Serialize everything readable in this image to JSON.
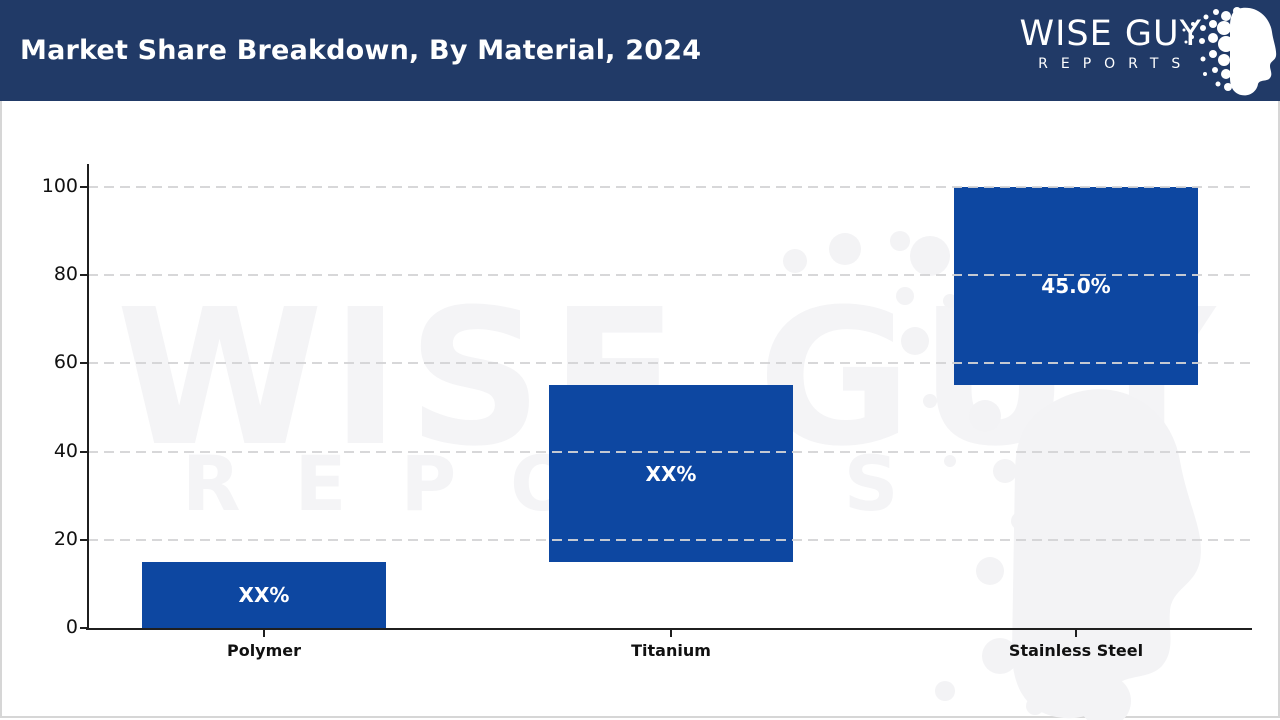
{
  "header": {
    "title": "Market Share Breakdown, By Material, 2024",
    "logo": {
      "line1": "WISE GUY",
      "line2": "REPORTS"
    }
  },
  "watermark": {
    "line1": "WISE GUY",
    "line2": "REPORTS"
  },
  "chart_data": {
    "type": "bar",
    "subtype": "waterfall",
    "title": "Market Share Breakdown, By Material, 2024",
    "xlabel": "",
    "ylabel": "",
    "categories": [
      "Polymer",
      "Titanium",
      "Stainless Steel"
    ],
    "bars": [
      {
        "category": "Polymer",
        "start": 0,
        "end": 15,
        "label": "XX%"
      },
      {
        "category": "Titanium",
        "start": 15,
        "end": 55,
        "label": "XX%"
      },
      {
        "category": "Stainless Steel",
        "start": 55,
        "end": 100,
        "label": "45.0%"
      }
    ],
    "yticks": [
      0,
      20,
      40,
      60,
      80,
      100
    ],
    "ylim": [
      0,
      105
    ],
    "grid": {
      "axis": "y",
      "style": "dashed",
      "color": "#dcdcdc"
    },
    "legend": "none"
  },
  "colors": {
    "header_bg": "#213a67",
    "bar_fill": "#0d47a1",
    "bar_label_text": "#ffffff",
    "axis": "#1f1f1f",
    "tick_text": "#111111",
    "watermark": "#f4f4f6",
    "page_border": "#d6d6d6"
  }
}
